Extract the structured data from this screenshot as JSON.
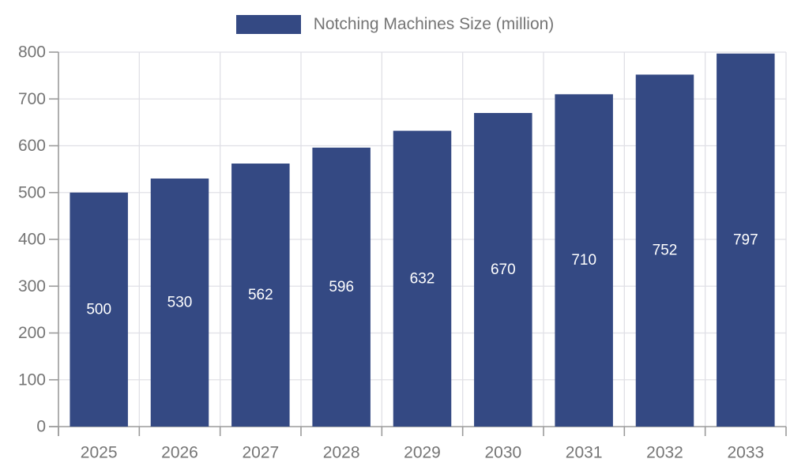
{
  "legend": {
    "label": "Notching Machines Size (million)"
  },
  "colors": {
    "bar": "#344983",
    "grid": "#e0e0e6",
    "axis": "#9b9b9b",
    "tick_label": "#757575",
    "legend_text": "#757575",
    "bar_label": "#ffffff",
    "background": "#ffffff"
  },
  "chart_data": {
    "type": "bar",
    "title": "Notching Machines Size (million)",
    "series_name": "Notching Machines Size (million)",
    "categories": [
      "2025",
      "2026",
      "2027",
      "2028",
      "2029",
      "2030",
      "2031",
      "2032",
      "2033"
    ],
    "values": [
      500,
      530,
      562,
      596,
      632,
      670,
      710,
      752,
      797
    ],
    "bar_labels": [
      500,
      530,
      562,
      596,
      632,
      670,
      710,
      752,
      797
    ],
    "xlabel": "",
    "ylabel": "",
    "ylim": [
      0,
      800
    ],
    "yticks": [
      0,
      100,
      200,
      300,
      400,
      500,
      600,
      700,
      800
    ],
    "grid": true,
    "grid_vertical": true,
    "legend_position": "top-center",
    "bar_label_color": "#ffffff",
    "bar_label_position": "center-of-bar"
  }
}
